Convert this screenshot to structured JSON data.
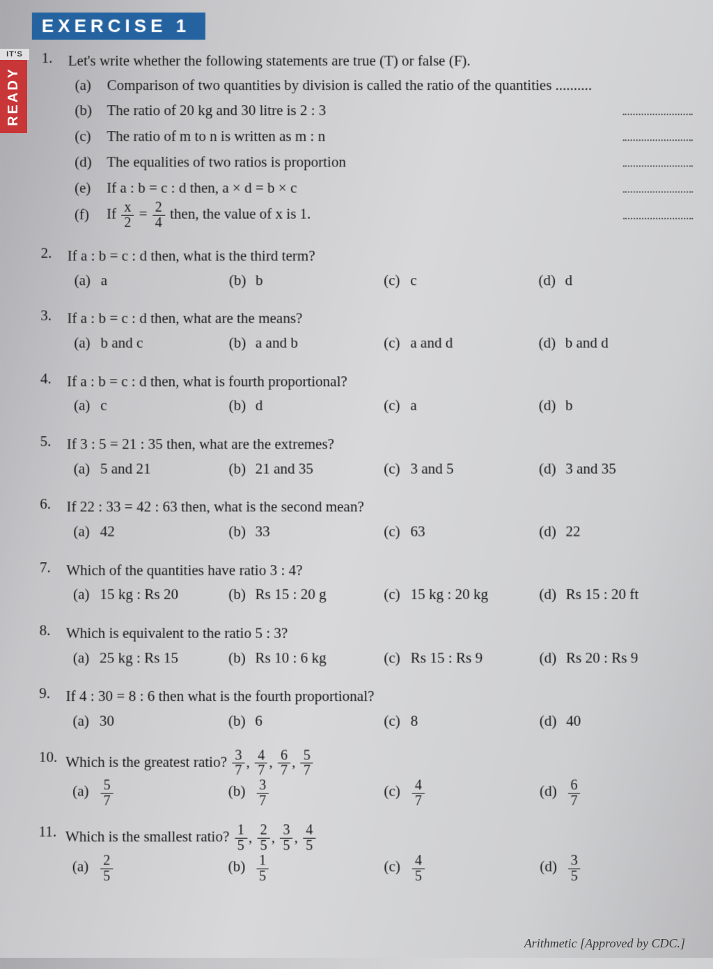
{
  "banner": "EXERCISE 1",
  "side": {
    "top": "IT'S",
    "ready": "READY"
  },
  "q1": {
    "num": "1.",
    "text": "Let's write whether the following statements are true (T) or false (F).",
    "subs": [
      {
        "label": "(a)",
        "text": "Comparison of two quantities by division is called the ratio of the quantities ..........",
        "blank": true
      },
      {
        "label": "(b)",
        "text": "The ratio of 20 kg and 30 litre is 2 : 3",
        "blank": true
      },
      {
        "label": "(c)",
        "text": "The ratio of m to n is written as m : n",
        "blank": true
      },
      {
        "label": "(d)",
        "text": "The equalities of two ratios is proportion",
        "blank": true
      },
      {
        "label": "(e)",
        "text": "If a : b = c : d then, a × d = b × c",
        "blank": true
      },
      {
        "label": "(f)",
        "text_html": "frac_x2_24",
        "blank": true
      }
    ],
    "f_text_before": "If ",
    "f_frac1_num": "x",
    "f_frac1_den": "2",
    "f_eq": " = ",
    "f_frac2_num": "2",
    "f_frac2_den": "4",
    "f_text_after": " then, the value of x is 1."
  },
  "q2": {
    "num": "2.",
    "text": "If a : b = c : d then, what is the third term?",
    "opts": [
      {
        "l": "(a)",
        "t": "a"
      },
      {
        "l": "(b)",
        "t": "b"
      },
      {
        "l": "(c)",
        "t": "c"
      },
      {
        "l": "(d)",
        "t": "d"
      }
    ]
  },
  "q3": {
    "num": "3.",
    "text": "If a : b = c : d then, what are the means?",
    "opts": [
      {
        "l": "(a)",
        "t": "b and c"
      },
      {
        "l": "(b)",
        "t": "a and b"
      },
      {
        "l": "(c)",
        "t": "a and d"
      },
      {
        "l": "(d)",
        "t": "b and d"
      }
    ]
  },
  "q4": {
    "num": "4.",
    "text": "If a : b = c : d then, what is fourth proportional?",
    "opts": [
      {
        "l": "(a)",
        "t": "c"
      },
      {
        "l": "(b)",
        "t": "d"
      },
      {
        "l": "(c)",
        "t": "a"
      },
      {
        "l": "(d)",
        "t": "b"
      }
    ]
  },
  "q5": {
    "num": "5.",
    "text": "If 3 : 5 = 21 : 35 then, what are the extremes?",
    "opts": [
      {
        "l": "(a)",
        "t": "5 and 21"
      },
      {
        "l": "(b)",
        "t": "21 and 35"
      },
      {
        "l": "(c)",
        "t": "3 and 5"
      },
      {
        "l": "(d)",
        "t": "3 and 35"
      }
    ]
  },
  "q6": {
    "num": "6.",
    "text": "If 22 : 33 = 42 : 63 then, what is the second mean?",
    "opts": [
      {
        "l": "(a)",
        "t": "42"
      },
      {
        "l": "(b)",
        "t": "33"
      },
      {
        "l": "(c)",
        "t": "63"
      },
      {
        "l": "(d)",
        "t": "22"
      }
    ]
  },
  "q7": {
    "num": "7.",
    "text": "Which of the quantities have ratio 3 : 4?",
    "opts": [
      {
        "l": "(a)",
        "t": "15 kg : Rs 20"
      },
      {
        "l": "(b)",
        "t": "Rs 15 : 20 g"
      },
      {
        "l": "(c)",
        "t": "15 kg : 20 kg"
      },
      {
        "l": "(d)",
        "t": "Rs 15 : 20 ft"
      }
    ]
  },
  "q8": {
    "num": "8.",
    "text": "Which is equivalent to the ratio 5 : 3?",
    "opts": [
      {
        "l": "(a)",
        "t": "25 kg : Rs 15"
      },
      {
        "l": "(b)",
        "t": "Rs 10 : 6 kg"
      },
      {
        "l": "(c)",
        "t": "Rs 15 : Rs 9"
      },
      {
        "l": "(d)",
        "t": "Rs 20 : Rs 9"
      }
    ]
  },
  "q9": {
    "num": "9.",
    "text": "If 4 : 30 = 8 : 6 then what is the fourth proportional?",
    "opts": [
      {
        "l": "(a)",
        "t": "30"
      },
      {
        "l": "(b)",
        "t": "6"
      },
      {
        "l": "(c)",
        "t": "8"
      },
      {
        "l": "(d)",
        "t": "40"
      }
    ]
  },
  "q10": {
    "num": "10.",
    "text_before": "Which is the greatest ratio? ",
    "list": [
      {
        "n": "3",
        "d": "7"
      },
      {
        "n": "4",
        "d": "7"
      },
      {
        "n": "6",
        "d": "7"
      },
      {
        "n": "5",
        "d": "7"
      }
    ],
    "opts": [
      {
        "l": "(a)",
        "n": "5",
        "d": "7"
      },
      {
        "l": "(b)",
        "n": "3",
        "d": "7"
      },
      {
        "l": "(c)",
        "n": "4",
        "d": "7"
      },
      {
        "l": "(d)",
        "n": "6",
        "d": "7"
      }
    ]
  },
  "q11": {
    "num": "11.",
    "text_before": "Which is the smallest ratio? ",
    "list": [
      {
        "n": "1",
        "d": "5"
      },
      {
        "n": "2",
        "d": "5"
      },
      {
        "n": "3",
        "d": "5"
      },
      {
        "n": "4",
        "d": "5"
      }
    ],
    "opts": [
      {
        "l": "(a)",
        "n": "2",
        "d": "5"
      },
      {
        "l": "(b)",
        "n": "1",
        "d": "5"
      },
      {
        "l": "(c)",
        "n": "4",
        "d": "5"
      },
      {
        "l": "(d)",
        "n": "3",
        "d": "5"
      }
    ]
  },
  "footer": "Arithmetic [Approved by CDC.]"
}
